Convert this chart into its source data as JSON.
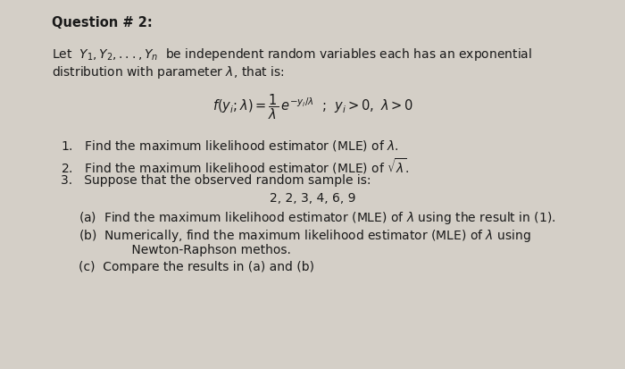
{
  "background_color": "#d4cfc7",
  "title": "Question # 2:",
  "intro_line1": "Let  $Y_1, Y_2, ..., Y_n$  be independent random variables each has an exponential",
  "intro_line2": "distribution with parameter $\\lambda$, that is:",
  "formula": "$f(y_i; \\lambda) = \\dfrac{1}{\\lambda}\\, e^{-y_i/\\lambda}$  ;  $y_i > 0,\\ \\lambda > 0$",
  "item1": "1.   Find the maximum likelihood estimator (MLE) of $\\lambda$.",
  "item2": "2.   Find the maximum likelihood estimator (MLE) of $\\sqrt{\\lambda}$.",
  "item3": "3.   Suppose that the observed random sample is:",
  "sample": "2, 2, 3, 4, 6, 9",
  "item_a": "(a)  Find the maximum likelihood estimator (MLE) of $\\lambda$ using the result in (1).",
  "item_b1": "(b)  Numerically, find the maximum likelihood estimator (MLE) of $\\lambda$ using",
  "item_b2": "         Newton-Raphson methos.",
  "item_c": "(c)  Compare the results in (a) and (b)",
  "text_color": "#1a1a1a",
  "title_fontsize": 10.5,
  "body_fontsize": 10.0,
  "formula_fontsize": 10.5
}
